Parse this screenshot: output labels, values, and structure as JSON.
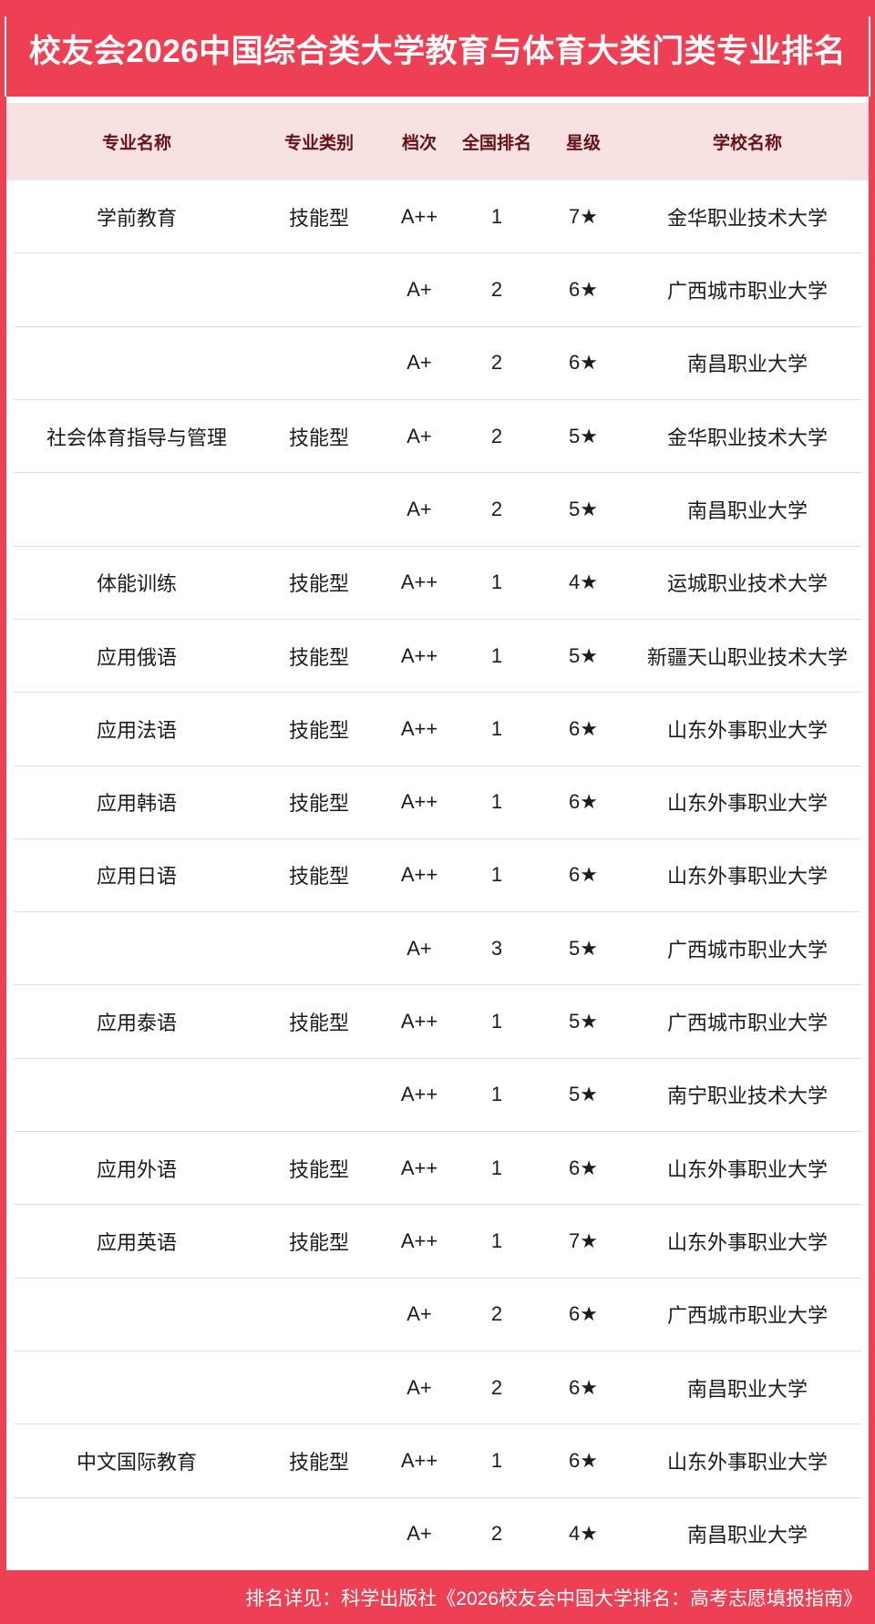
{
  "title": "校友会2026中国综合类大学教育与体育大类门类专业排名",
  "colors": {
    "accent_red": "#ed4055",
    "header_row_bg": "#f8e1e1",
    "header_row_text": "#631318",
    "row_separator": "#f3d6d8",
    "body_text": "#1c1c1c",
    "banner_text": "#ffffff"
  },
  "table": {
    "columns": [
      "专业名称",
      "专业类别",
      "档次",
      "全国排名",
      "星级",
      "学校名称"
    ],
    "rows": [
      [
        "学前教育",
        "技能型",
        "A++",
        "1",
        "7★",
        "金华职业技术大学"
      ],
      [
        "",
        "",
        "A+",
        "2",
        "6★",
        "广西城市职业大学"
      ],
      [
        "",
        "",
        "A+",
        "2",
        "6★",
        "南昌职业大学"
      ],
      [
        "社会体育指导与管理",
        "技能型",
        "A+",
        "2",
        "5★",
        "金华职业技术大学"
      ],
      [
        "",
        "",
        "A+",
        "2",
        "5★",
        "南昌职业大学"
      ],
      [
        "体能训练",
        "技能型",
        "A++",
        "1",
        "4★",
        "运城职业技术大学"
      ],
      [
        "应用俄语",
        "技能型",
        "A++",
        "1",
        "5★",
        "新疆天山职业技术大学"
      ],
      [
        "应用法语",
        "技能型",
        "A++",
        "1",
        "6★",
        "山东外事职业大学"
      ],
      [
        "应用韩语",
        "技能型",
        "A++",
        "1",
        "6★",
        "山东外事职业大学"
      ],
      [
        "应用日语",
        "技能型",
        "A++",
        "1",
        "6★",
        "山东外事职业大学"
      ],
      [
        "",
        "",
        "A+",
        "3",
        "5★",
        "广西城市职业大学"
      ],
      [
        "应用泰语",
        "技能型",
        "A++",
        "1",
        "5★",
        "广西城市职业大学"
      ],
      [
        "",
        "",
        "A++",
        "1",
        "5★",
        "南宁职业技术大学"
      ],
      [
        "应用外语",
        "技能型",
        "A++",
        "1",
        "6★",
        "山东外事职业大学"
      ],
      [
        "应用英语",
        "技能型",
        "A++",
        "1",
        "7★",
        "山东外事职业大学"
      ],
      [
        "",
        "",
        "A+",
        "2",
        "6★",
        "广西城市职业大学"
      ],
      [
        "",
        "",
        "A+",
        "2",
        "6★",
        "南昌职业大学"
      ],
      [
        "中文国际教育",
        "技能型",
        "A++",
        "1",
        "6★",
        "山东外事职业大学"
      ],
      [
        "",
        "",
        "A+",
        "2",
        "4★",
        "南昌职业大学"
      ]
    ]
  },
  "footer": {
    "text": "排名详见：科学出版社《2026校友会中国大学排名：高考志愿填报指南》"
  }
}
